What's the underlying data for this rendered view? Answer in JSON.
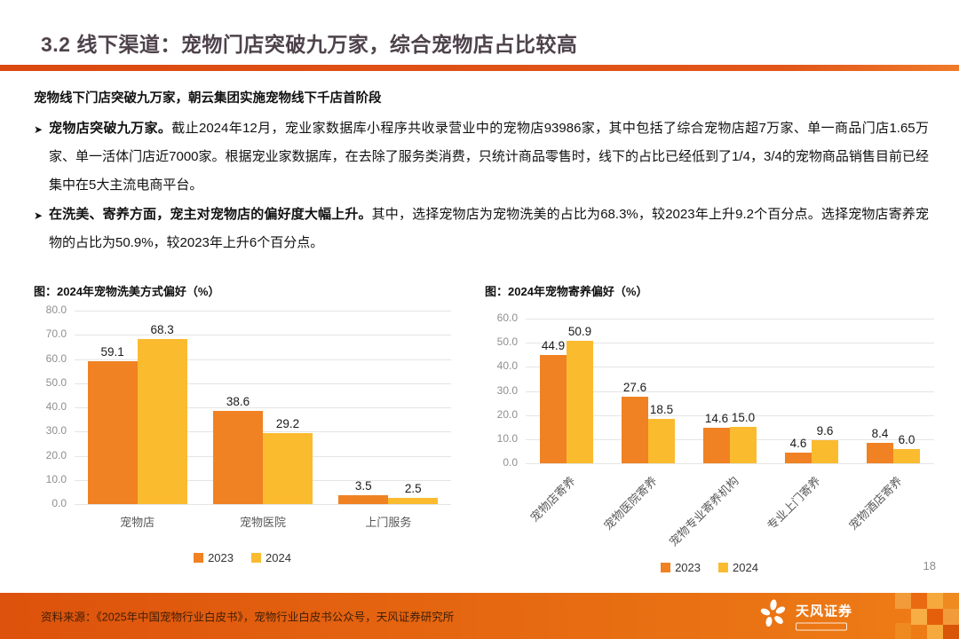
{
  "header": {
    "title": "3.2 线下渠道：宠物门店突破九万家，综合宠物店占比较高"
  },
  "body": {
    "heading": "宠物线下门店突破九万家，朝云集团实施宠物线下千店首阶段",
    "bullet_marker": "➤",
    "bullets": [
      {
        "bold": "宠物店突破九万家。",
        "text": "截止2024年12月，宠业家数据库小程序共收录营业中的宠物店93986家，其中包括了综合宠物店超7万家、单一商品门店1.65万家、单一活体门店近7000家。根据宠业家数据库，在去除了服务类消费，只统计商品零售时，线下的占比已经低到了1/4，3/4的宠物商品销售目前已经集中在5大主流电商平台。"
      },
      {
        "bold": "在洗美、寄养方面，宠主对宠物店的偏好度大幅上升。",
        "text": "其中，选择宠物店为宠物洗美的占比为68.3%，较2023年上升9.2个百分点。选择宠物店寄养宠物的占比为50.9%，较2023年上升6个百分点。"
      }
    ]
  },
  "chart_data": [
    {
      "type": "bar",
      "title": "图：2024年宠物洗美方式偏好（%）",
      "categories": [
        "宠物店",
        "宠物医院",
        "上门服务"
      ],
      "series": [
        {
          "name": "2023",
          "color": "#F08223",
          "values": [
            59.1,
            38.6,
            3.5
          ]
        },
        {
          "name": "2024",
          "color": "#FBBB2F",
          "values": [
            68.3,
            29.2,
            2.5
          ]
        }
      ],
      "ylim": [
        0,
        80
      ],
      "ytick_step": 10,
      "grid": true,
      "legend_position": "bottom",
      "rotated_labels": false
    },
    {
      "type": "bar",
      "title": "图：2024年宠物寄养偏好（%）",
      "categories": [
        "宠物店寄养",
        "宠物医院寄养",
        "宠物专业寄养机构",
        "专业上门寄养",
        "宠物酒店寄养"
      ],
      "series": [
        {
          "name": "2023",
          "color": "#F08223",
          "values": [
            44.9,
            27.6,
            14.6,
            4.6,
            8.4
          ]
        },
        {
          "name": "2024",
          "color": "#FBBB2F",
          "values": [
            50.9,
            18.5,
            15.0,
            9.6,
            6.0
          ]
        }
      ],
      "ylim": [
        0,
        60
      ],
      "ytick_step": 10,
      "grid": true,
      "legend_position": "bottom",
      "rotated_labels": true
    }
  ],
  "footer": {
    "source": "资料来源：《2025年中国宠物行业白皮书》，宠物行业白皮书公众号，天风证券研究所",
    "page_number": "18",
    "logo_text": "天风证券"
  },
  "colors": {
    "accent_orange": "#DD4E12",
    "bar_2023": "#F08223",
    "bar_2024": "#FBBB2F",
    "footer_gradient_left": "#DD520C",
    "footer_gradient_right": "#EE7D16"
  }
}
